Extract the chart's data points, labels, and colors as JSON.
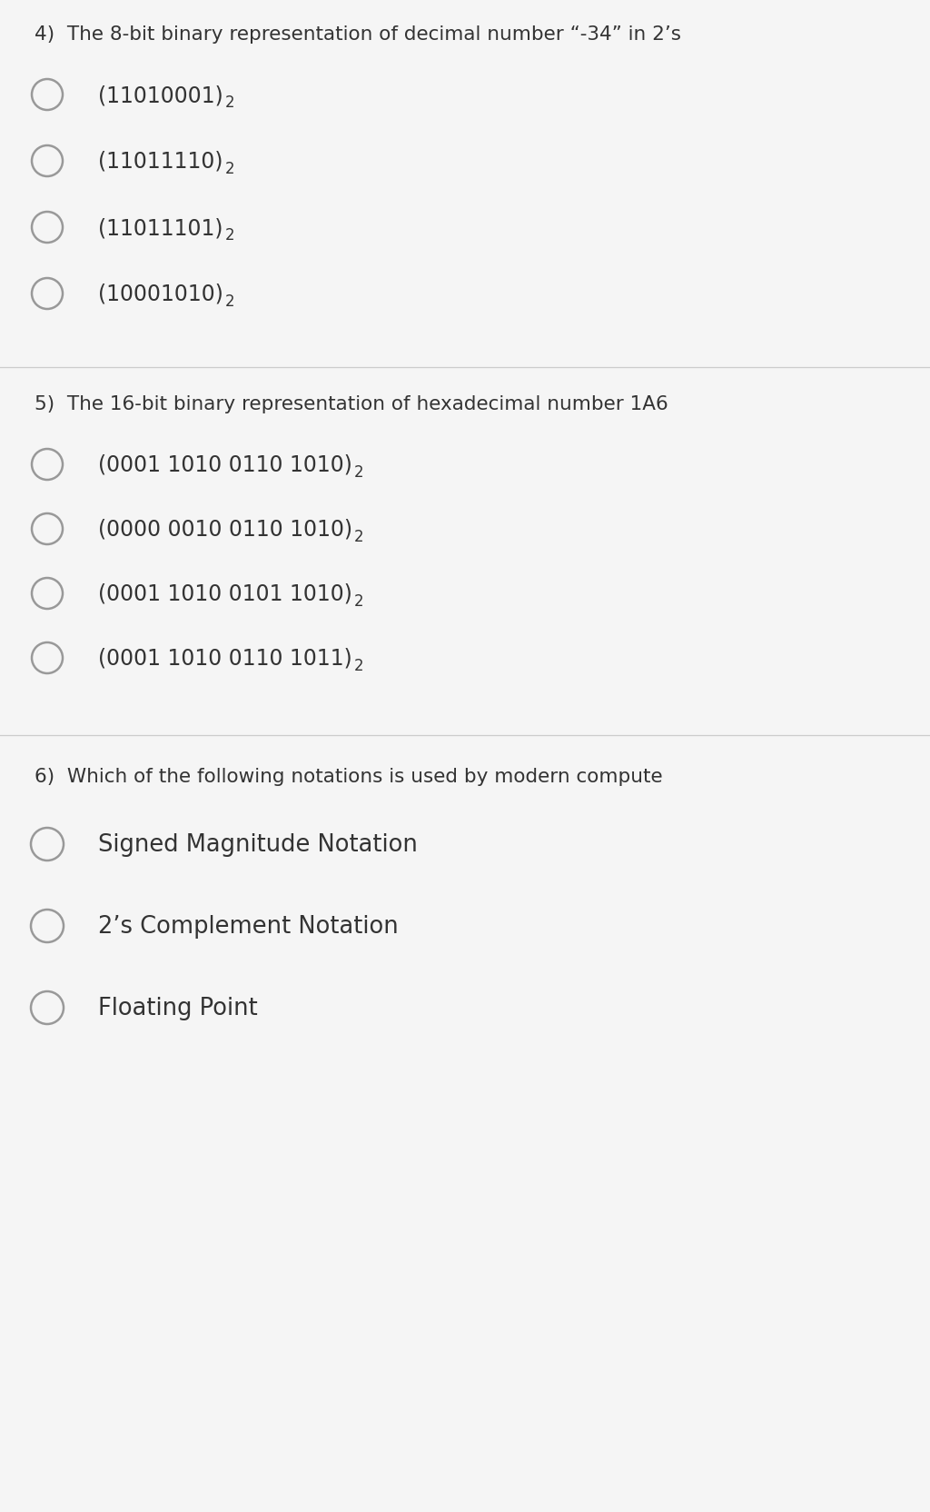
{
  "bg_color": "#f5f5f5",
  "text_color": "#333333",
  "line_color": "#cccccc",
  "question4": {
    "question": "4)  The 8-bit binary representation of decimal number “-34” in 2’s",
    "options": [
      [
        "(11010001)",
        "2"
      ],
      [
        "(11011110)",
        "2"
      ],
      [
        "(11011101)",
        "2"
      ],
      [
        "(10001010)",
        "2"
      ]
    ]
  },
  "question5": {
    "question": "5)  The 16-bit binary representation of hexadecimal number 1A6",
    "options": [
      [
        "(0001 1010 0110 1010)",
        "2"
      ],
      [
        "(0000 0010 0110 1010)",
        "2"
      ],
      [
        "(0001 1010 0101 1010)",
        "2"
      ],
      [
        "(0001 1010 0110 1011)",
        "2"
      ]
    ]
  },
  "question6": {
    "question": "6)  Which of the following notations is used by modern compute",
    "options_plain": [
      "Signed Magnitude Notation",
      "2’s Complement Notation",
      "Floating Point"
    ]
  },
  "circle_color": "#f5f5f5",
  "circle_edge_color": "#999999",
  "circle_linewidth": 1.8,
  "question_fontsize": 15.5,
  "option_fontsize": 17.0,
  "q6_option_fontsize": 18.5
}
